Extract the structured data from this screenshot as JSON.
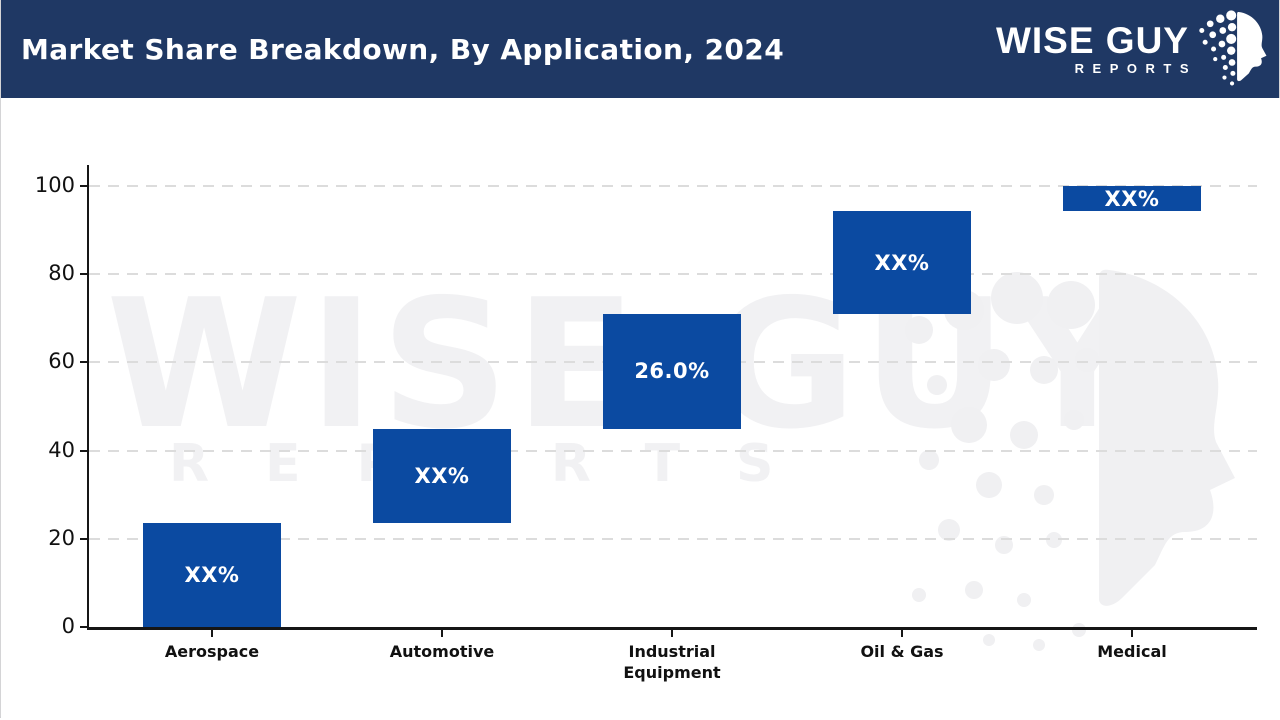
{
  "header": {
    "title": "Market Share Breakdown, By Application, 2024",
    "logo": {
      "line1": "WISE GUY",
      "line2": "REPORTS"
    }
  },
  "watermark": {
    "line1": "WISE GUY",
    "line2": "REPORTS"
  },
  "colors": {
    "header_bg": "#1f3864",
    "bar": "#0b4aa1",
    "bar_label": "#ffffff",
    "grid": "#dcdcdc",
    "axis": "#161616",
    "watermark": "#f1f1f3"
  },
  "chart_data": {
    "type": "bar",
    "subtype": "waterfall",
    "title": "Market Share Breakdown, By Application, 2024",
    "categories": [
      "Aerospace",
      "Automotive",
      "Industrial Equipment",
      "Oil & Gas",
      "Medical"
    ],
    "category_lines": [
      [
        "Aerospace"
      ],
      [
        "Automotive"
      ],
      [
        "Industrial",
        "Equipment"
      ],
      [
        "Oil & Gas"
      ],
      [
        "Medical"
      ]
    ],
    "bars": [
      {
        "category": "Aerospace",
        "start": 0,
        "end": 23.5,
        "label": "XX%"
      },
      {
        "category": "Automotive",
        "start": 23.5,
        "end": 45.0,
        "label": "XX%"
      },
      {
        "category": "Industrial Equipment",
        "start": 45.0,
        "end": 71.0,
        "label": "26.0%"
      },
      {
        "category": "Oil & Gas",
        "start": 71.0,
        "end": 94.3,
        "label": "XX%"
      },
      {
        "category": "Medical",
        "start": 94.3,
        "end": 100.0,
        "label": "XX%"
      }
    ],
    "values_as_labeled": [
      "XX%",
      "XX%",
      "26.0%",
      "XX%",
      "XX%"
    ],
    "y_ticks": [
      0,
      20,
      40,
      60,
      80,
      100
    ],
    "ylim": [
      0,
      105
    ],
    "xlabel": "",
    "ylabel": "",
    "grid": "horizontal-dashed",
    "legend": "none",
    "bar_color": "#0b4aa1",
    "label_color": "#ffffff"
  }
}
